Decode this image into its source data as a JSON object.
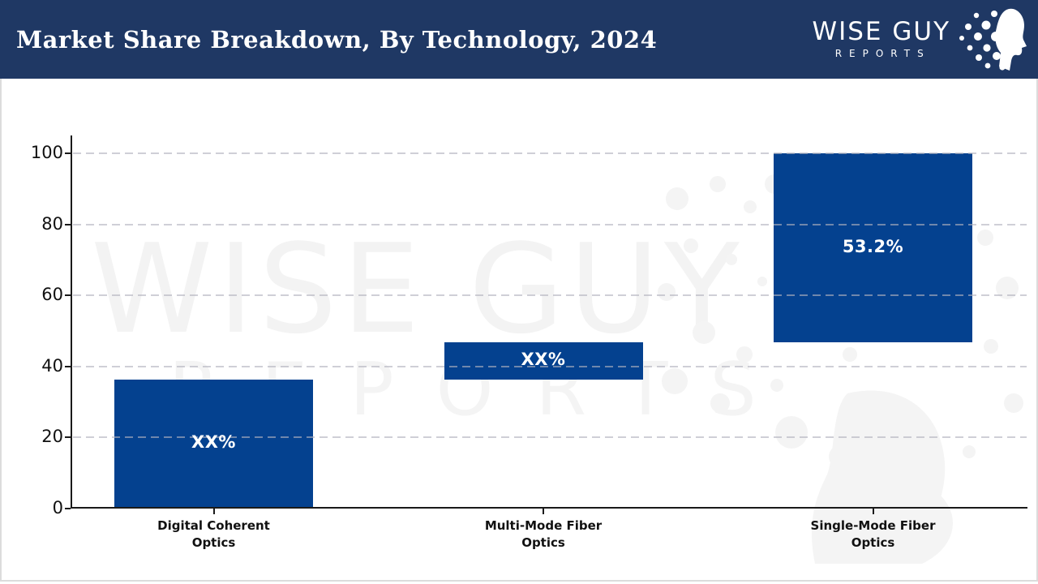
{
  "header": {
    "title": "Market Share Breakdown, By Technology, 2024",
    "logo": {
      "wordmark": "WISE GUY",
      "subtext": "REPORTS"
    }
  },
  "watermark": {
    "wordmark": "WISE GUY",
    "subtext": "REPORTS"
  },
  "chart_data": {
    "type": "bar",
    "subtype": "stacked-waterfall",
    "title": "Market Share Breakdown, By Technology, 2024",
    "categories": [
      "Digital Coherent\nOptics",
      "Multi-Mode Fiber\nOptics",
      "Single-Mode Fiber\nOptics"
    ],
    "segments": [
      {
        "category": "Digital Coherent Optics",
        "base": 0,
        "value": 36.4,
        "label": "XX%"
      },
      {
        "category": "Multi-Mode Fiber Optics",
        "base": 36.4,
        "value": 10.4,
        "label": "XX%"
      },
      {
        "category": "Single-Mode Fiber Optics",
        "base": 46.8,
        "value": 53.2,
        "label": "53.2%"
      }
    ],
    "yticks": [
      0,
      20,
      40,
      60,
      80,
      100
    ],
    "ylim": [
      0,
      105
    ],
    "xlabel": "",
    "ylabel": "",
    "grid": "horizontal-dashed",
    "legend": "none",
    "bar_color": "#04418F",
    "bar_label_color": "#FFFFFF",
    "axis_color": "#1A1A1A",
    "grid_color": "#D9D9D9",
    "header_bg": "#1F3864"
  }
}
